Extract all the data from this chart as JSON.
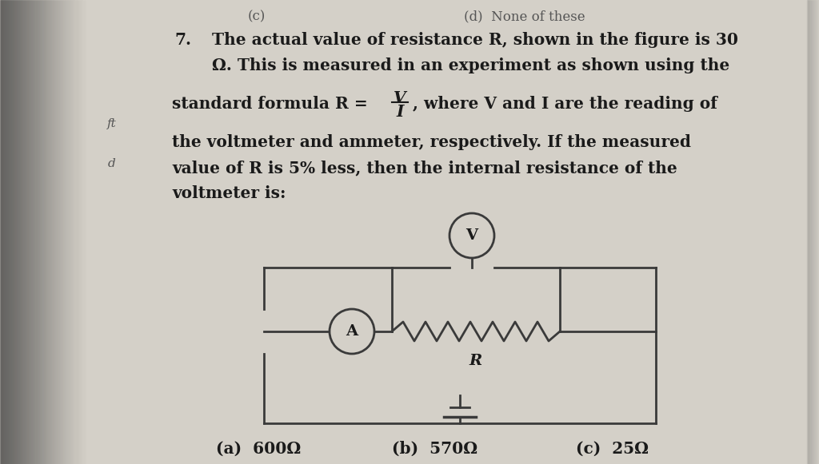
{
  "background_color": "#b8b4ac",
  "page_color": "#d4d0c8",
  "text_color": "#1a1a1a",
  "question_number": "7.",
  "line1": "The actual value of resistance R, shown in the figure is 30",
  "line2": "Ω. This is measured in an experiment as shown using the",
  "line3_pre": "standard formula R = ",
  "line3_fraction_num": "V",
  "line3_fraction_den": "I",
  "line3_post": ", where V and I are the reading of",
  "line4": "the voltmeter and ammeter, respectively. If the measured",
  "line5": "value of R is 5% less, then the internal resistance of the",
  "line6": "voltmeter is:",
  "answer_a": "(a)  600Ω",
  "answer_b": "(b)  570Ω",
  "answer_c": "(c)  25Ω",
  "top_partial": "(d)  None of these",
  "wire_color": "#3a3a3a",
  "circle_fill": "#d4d0c8",
  "ammeter_label": "A",
  "voltmeter_label": "V",
  "resistor_label": "R"
}
